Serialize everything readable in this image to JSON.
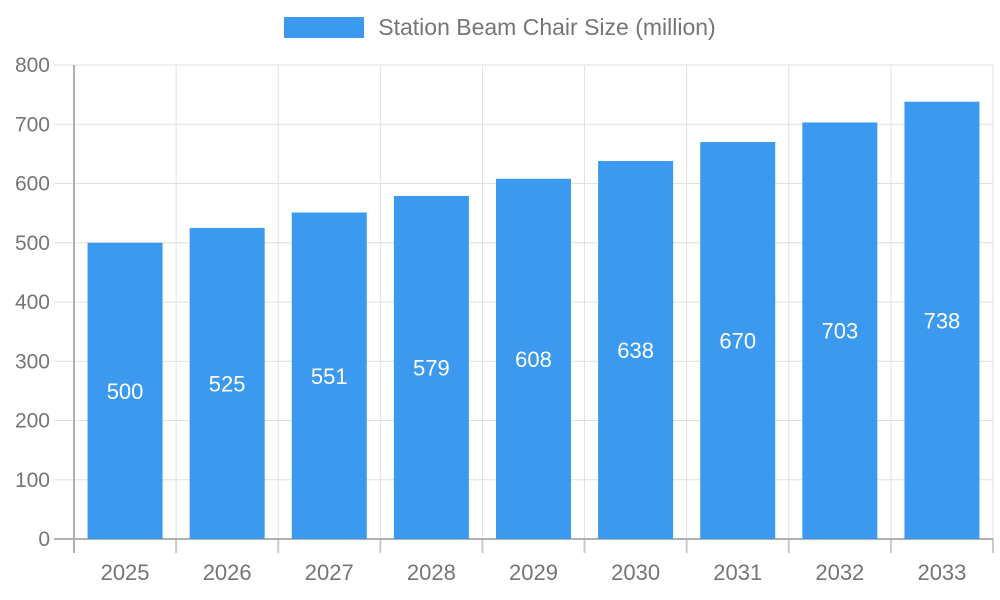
{
  "chart_data": {
    "type": "bar",
    "title": "Station Beam Chair Size (million)",
    "legend_label": "Station Beam Chair Size (million)",
    "legend_position": "top",
    "categories": [
      "2025",
      "2026",
      "2027",
      "2028",
      "2029",
      "2030",
      "2031",
      "2032",
      "2033"
    ],
    "values": [
      500,
      525,
      551,
      579,
      608,
      638,
      670,
      703,
      738
    ],
    "xlabel": "",
    "ylabel": "",
    "ylim": [
      0,
      800
    ],
    "ytick_step": 100,
    "yticks": [
      0,
      100,
      200,
      300,
      400,
      500,
      600,
      700,
      800
    ],
    "grid": true,
    "colors": {
      "bar": "#3b9af0",
      "bar_value_label": "#ffffff",
      "axis_text": "#757575",
      "grid_line": "#e0e0e0",
      "axis_line": "#b0b0b0",
      "tick": "#c9c9c9"
    }
  }
}
